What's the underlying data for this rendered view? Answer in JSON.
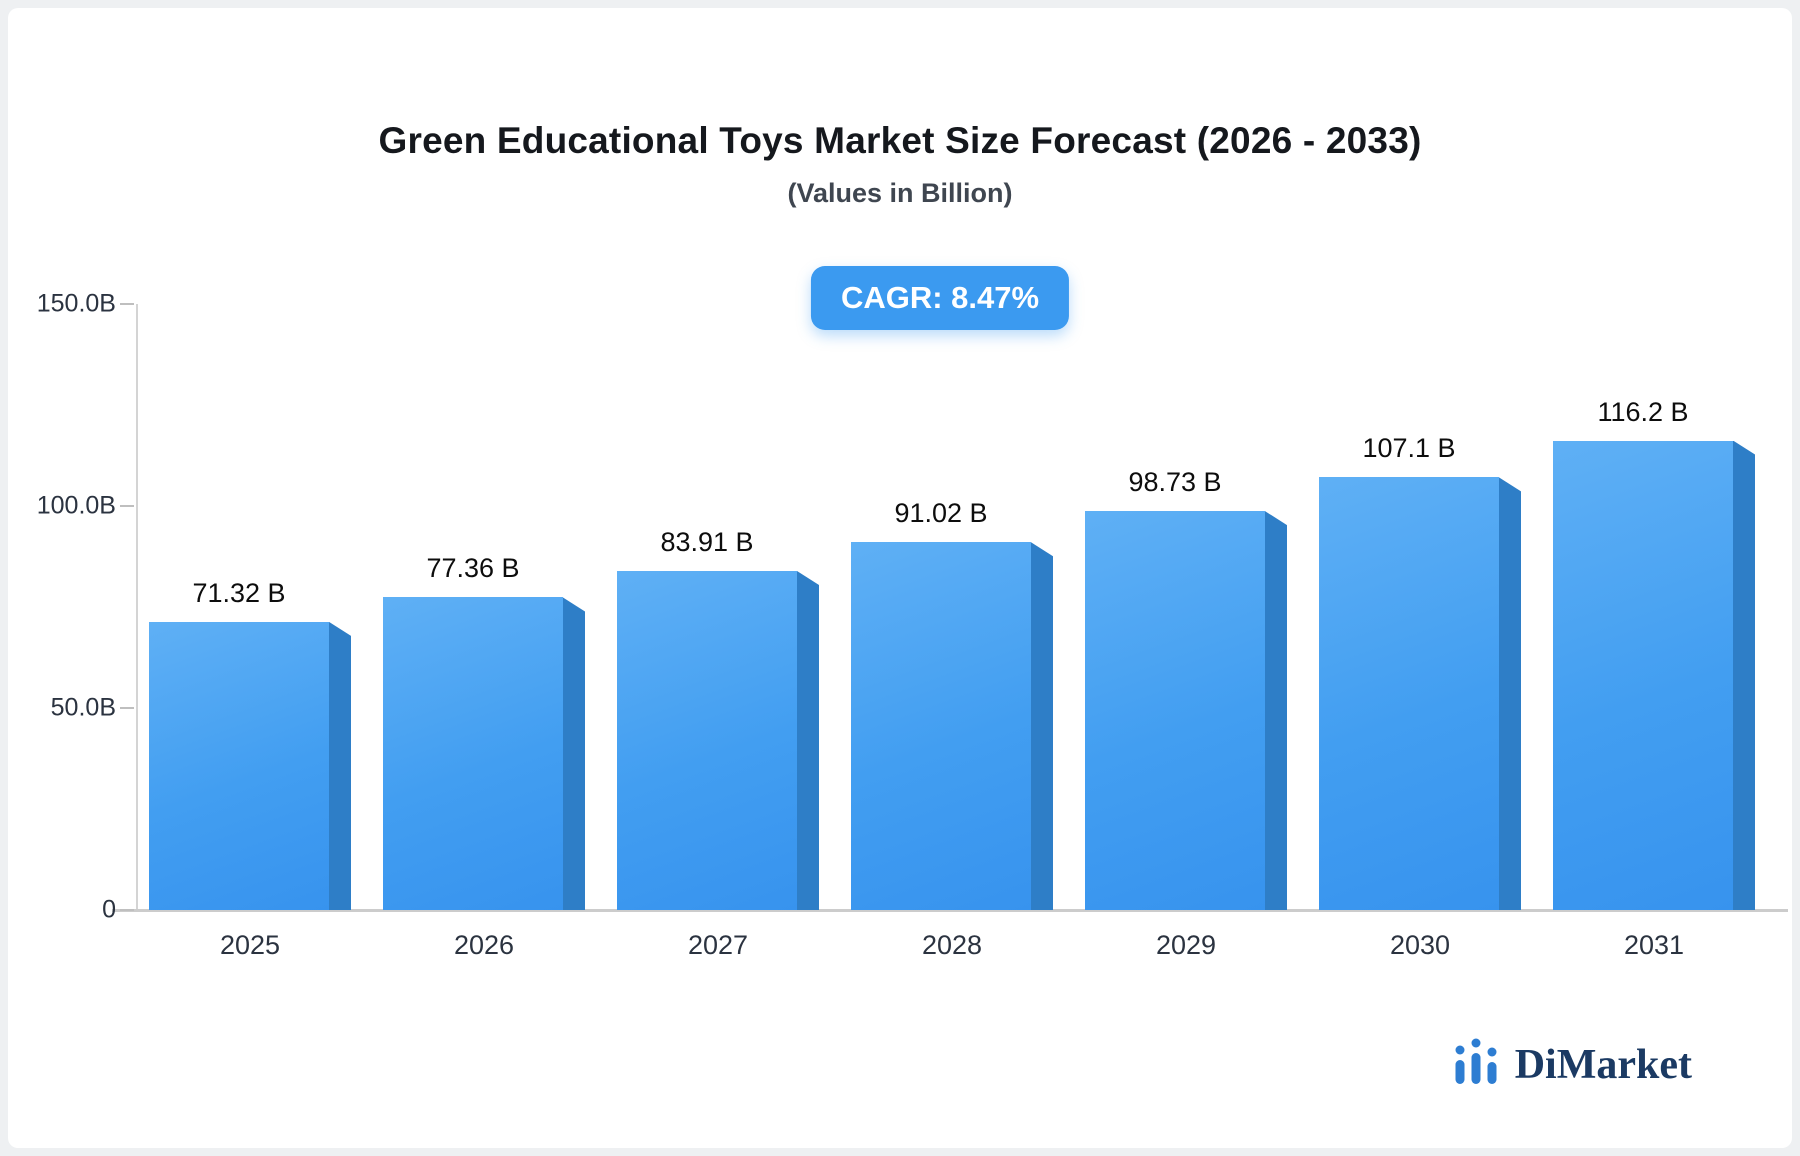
{
  "chart_data": {
    "type": "bar",
    "title": "Green Educational Toys Market Size Forecast (2026 - 2033)",
    "subtitle": "(Values in Billion)",
    "badge": "CAGR: 8.47%",
    "categories": [
      "2025",
      "2026",
      "2027",
      "2028",
      "2029",
      "2030",
      "2031"
    ],
    "values": [
      71.32,
      77.36,
      83.91,
      91.02,
      98.73,
      107.1,
      116.2
    ],
    "value_labels": [
      "71.32 B",
      "77.36 B",
      "83.91 B",
      "91.02 B",
      "98.73 B",
      "107.1 B",
      "116.2 B"
    ],
    "ylim": [
      0,
      150
    ],
    "yticks": [
      {
        "label": "150.0B",
        "value": 150
      },
      {
        "label": "100.0B",
        "value": 100
      },
      {
        "label": "50.0B",
        "value": 50
      },
      {
        "label": "0",
        "value": 0
      }
    ],
    "grid": false,
    "legend": false,
    "colors": {
      "bar_top": "#5fb0f5",
      "bar_bottom": "#3793ee",
      "bar_side": "#2e7ec7",
      "badge_bg": "#3b9af0",
      "badge_text": "#ffffff"
    }
  },
  "logo": {
    "text": "DiMarket",
    "icon": "bar-chart-dots-icon",
    "color": "#1b3a63"
  }
}
